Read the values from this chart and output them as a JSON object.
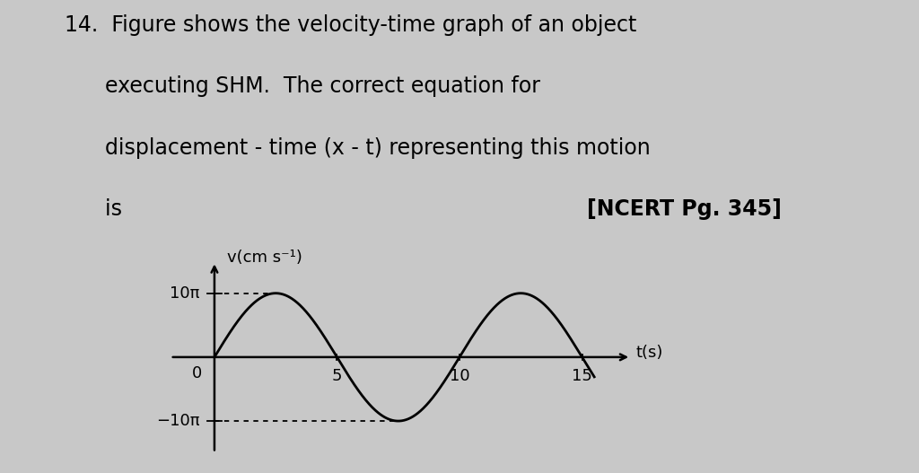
{
  "ylabel": "v(cm s⁻¹)",
  "xlabel": "t(s)",
  "amplitude": 31.41592653589793,
  "period": 10,
  "t_start": 0,
  "t_end": 15.5,
  "xlim": [
    -2.0,
    17.5
  ],
  "ylim": [
    -50,
    50
  ],
  "yticks": [
    31.41592653589793,
    -31.41592653589793
  ],
  "ytick_labels": [
    "10π",
    "−10π"
  ],
  "xticks": [
    5,
    10,
    15
  ],
  "xtick_labels": [
    "5",
    "10",
    "15"
  ],
  "curve_color": "#000000",
  "dashed_color": "#000000",
  "background_color": "#c8c8c8",
  "text_color": "#000000",
  "title_fontsize": 17,
  "axis_label_fontsize": 13,
  "tick_fontsize": 13,
  "line1": "14.  Figure shows the velocity-time graph of an object",
  "line2": "      executing SHM.  The correct equation for",
  "line3": "      displacement - time (x - t) representing this motion",
  "line4_left": "      is",
  "line4_right": "[NCERT Pg. 345]"
}
